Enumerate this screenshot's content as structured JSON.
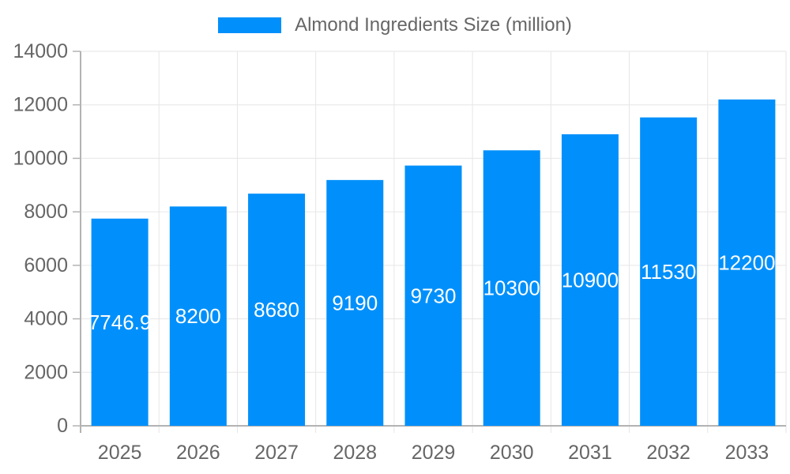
{
  "chart_data": {
    "type": "bar",
    "title": "",
    "xlabel": "",
    "ylabel": "",
    "legend_position": "top",
    "grid": true,
    "categories": [
      "2025",
      "2026",
      "2027",
      "2028",
      "2029",
      "2030",
      "2031",
      "2032",
      "2033"
    ],
    "series": [
      {
        "name": "Almond Ingredients Size (million)",
        "values": [
          7746.9,
          8200,
          8680,
          9190,
          9730,
          10300,
          10900,
          11530,
          12200
        ],
        "labels": [
          "7746.9",
          "8200",
          "8680",
          "9190",
          "9730",
          "10300",
          "10900",
          "11530",
          "12200"
        ]
      }
    ],
    "ylim": [
      0,
      14000
    ],
    "y_ticks": [
      0,
      2000,
      4000,
      6000,
      8000,
      10000,
      12000,
      14000
    ],
    "bar_labels_inside": true
  },
  "colors": {
    "bar": "#0190fb",
    "bar_label": "#ffffff",
    "axis_text": "#666666",
    "legend_text": "#666666",
    "axis_line": "#b3b3b3",
    "gridline": "#e6e6e6",
    "background": "#ffffff"
  }
}
